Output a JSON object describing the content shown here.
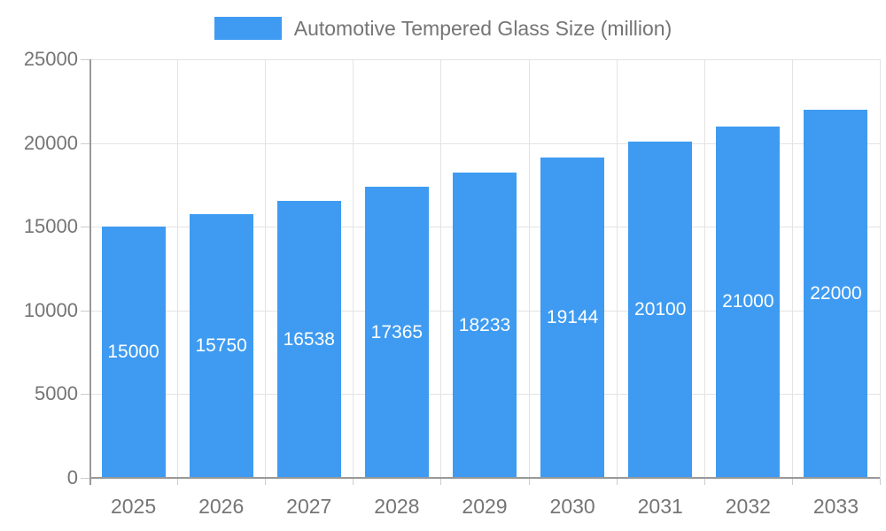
{
  "chart_data": {
    "type": "bar",
    "title": "Automotive Tempered Glass Size (million)",
    "legend_position": "top",
    "categories": [
      "2025",
      "2026",
      "2027",
      "2028",
      "2029",
      "2030",
      "2031",
      "2032",
      "2033"
    ],
    "series": [
      {
        "name": "Automotive Tempered Glass Size (million)",
        "values": [
          15000,
          15750,
          16538,
          17365,
          18233,
          19144,
          20100,
          21000,
          22000
        ]
      }
    ],
    "data_labels": [
      "15000",
      "15750",
      "16538",
      "17365",
      "18233",
      "19144",
      "20100",
      "21000",
      "22000"
    ],
    "xlabel": "",
    "ylabel": "",
    "ylim": [
      0,
      25000
    ],
    "yticks": [
      0,
      5000,
      10000,
      15000,
      20000,
      25000
    ],
    "ytick_labels": [
      "0",
      "5000",
      "10000",
      "15000",
      "20000",
      "25000"
    ],
    "grid": true,
    "colors": {
      "bar": "#3e9bf1",
      "bar_label_text": "#ffffff",
      "axis_text": "#757575",
      "gridline": "#e3e3e3",
      "axis_line": "#999999",
      "tick": "#cccccc"
    }
  }
}
